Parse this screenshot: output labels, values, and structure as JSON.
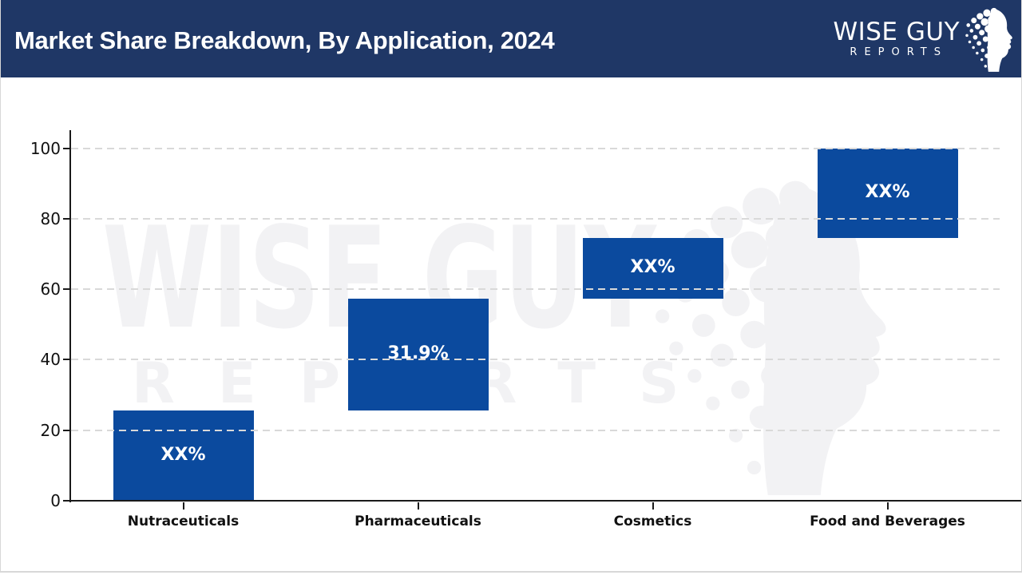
{
  "header": {
    "title": "Market Share Breakdown, By Application, 2024",
    "logo": {
      "name": "WISE GUY",
      "tagline": "REPORTS"
    }
  },
  "watermark": {
    "name": "WISE GUY",
    "tagline": "REPORTS"
  },
  "colors": {
    "header_bg": "#1f3766",
    "bar": "#0b4a9e",
    "bar_label": "#ffffff",
    "grid": "#d9d9d9",
    "axis": "#1a1a1a",
    "tick_text": "#111111",
    "watermark": "#f2f2f4"
  },
  "chart_data": {
    "type": "bar",
    "subtype": "waterfall-floating-bars",
    "title": "Market Share Breakdown, By Application, 2024",
    "categories": [
      "Nutraceuticals",
      "Pharmaceuticals",
      "Cosmetics",
      "Food and Beverages"
    ],
    "segments": [
      {
        "category": "Nutraceuticals",
        "start": 0,
        "end": 25.5,
        "label": "XX%"
      },
      {
        "category": "Pharmaceuticals",
        "start": 25.5,
        "end": 57.4,
        "label": "31.9%",
        "value": 31.9
      },
      {
        "category": "Cosmetics",
        "start": 57.4,
        "end": 74.5,
        "label": "XX%"
      },
      {
        "category": "Food and Beverages",
        "start": 74.5,
        "end": 100,
        "label": "XX%"
      }
    ],
    "xlabel": "",
    "ylabel": "",
    "yticks": [
      0,
      20,
      40,
      60,
      80,
      100
    ],
    "ylim": [
      0,
      105
    ],
    "unit": "%",
    "grid": "dashed-horizontal-over-bars",
    "legend": "none"
  }
}
